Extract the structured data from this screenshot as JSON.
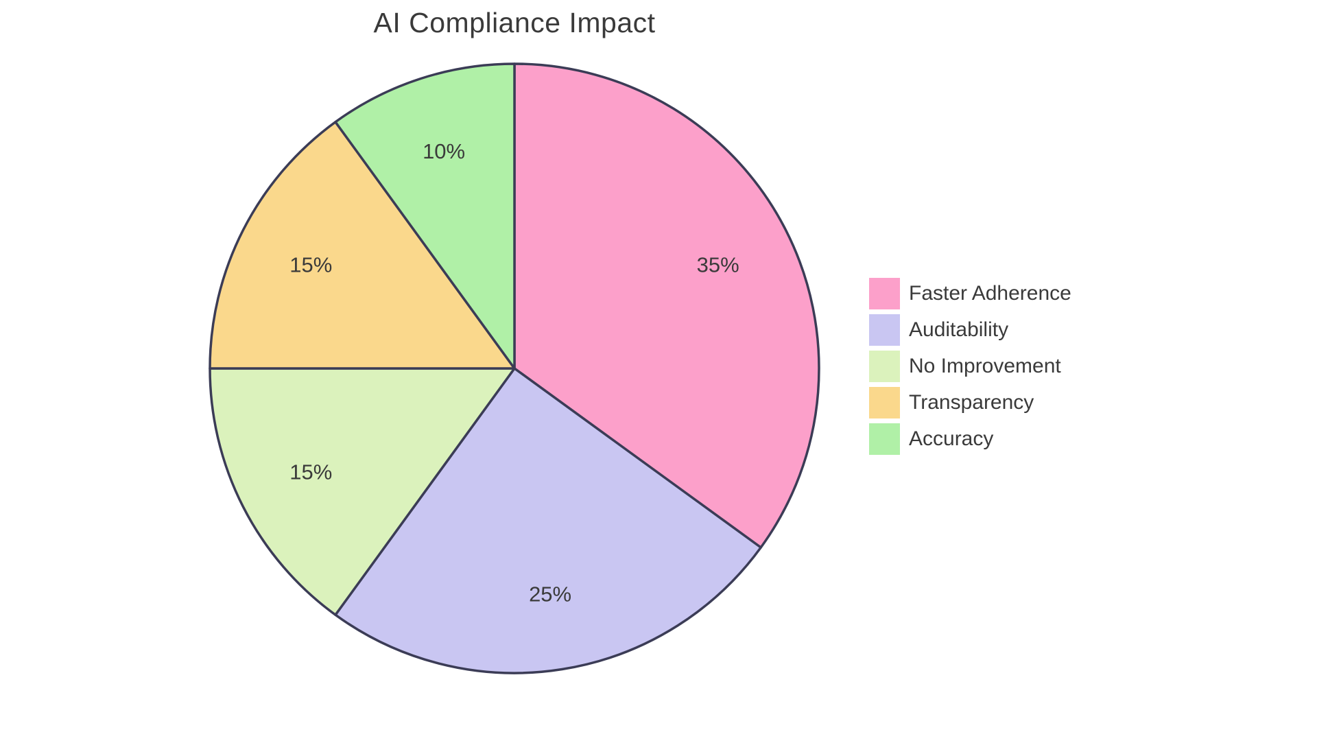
{
  "chart_data": {
    "type": "pie",
    "title": "AI Compliance Impact",
    "slices": [
      {
        "label": "Faster Adherence",
        "value": 35,
        "pct_label": "35%",
        "color": "#FCA0CA"
      },
      {
        "label": "Auditability",
        "value": 25,
        "pct_label": "25%",
        "color": "#C9C6F2"
      },
      {
        "label": "No Improvement",
        "value": 15,
        "pct_label": "15%",
        "color": "#DBF2BC"
      },
      {
        "label": "Transparency",
        "value": 15,
        "pct_label": "15%",
        "color": "#FAD88C"
      },
      {
        "label": "Accuracy",
        "value": 10,
        "pct_label": "10%",
        "color": "#B0F0A7"
      }
    ],
    "start_angle_deg": 0,
    "direction": "clockwise",
    "stroke_color": "#3B3C56",
    "stroke_width": 3.5,
    "label_color": "#3A3A3A",
    "label_radius_fraction": 0.75,
    "legend_position": "right",
    "background_color": "#FFFFFF"
  }
}
